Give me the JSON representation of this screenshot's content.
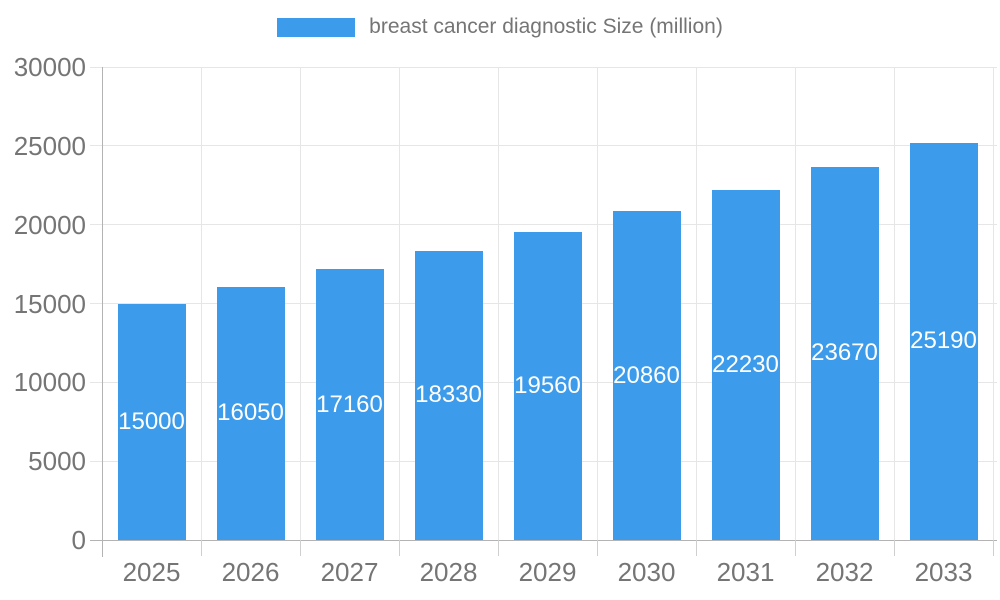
{
  "chart_data": {
    "type": "bar",
    "title": "breast cancer diagnostic Size (million)",
    "series_name": "breast cancer diagnostic Size (million)",
    "categories": [
      "2025",
      "2026",
      "2027",
      "2028",
      "2029",
      "2030",
      "2031",
      "2032",
      "2033"
    ],
    "values": [
      15000,
      16050,
      17160,
      18330,
      19560,
      20860,
      22230,
      23670,
      25190
    ],
    "value_labels": [
      "15000",
      "16050",
      "17160",
      "18330",
      "19560",
      "20860",
      "22230",
      "23670",
      "25190"
    ],
    "xlabel": "",
    "ylabel": "",
    "ylim": [
      0,
      30000
    ],
    "yticks": [
      0,
      5000,
      10000,
      15000,
      20000,
      25000,
      30000
    ],
    "ytick_labels": [
      "0",
      "5000",
      "10000",
      "15000",
      "20000",
      "25000",
      "30000"
    ],
    "grid": true,
    "legend_position": "top",
    "value_label_position": "inside-center"
  },
  "style": {
    "bar_color": "#3C9BEB",
    "grid_color": "#E6E6E6",
    "axis_color": "#B3B3B3",
    "tick_color": "#CFCFCF",
    "text_color": "#757575",
    "value_label_color": "#FFFFFF",
    "background_color": "#FFFFFF"
  }
}
